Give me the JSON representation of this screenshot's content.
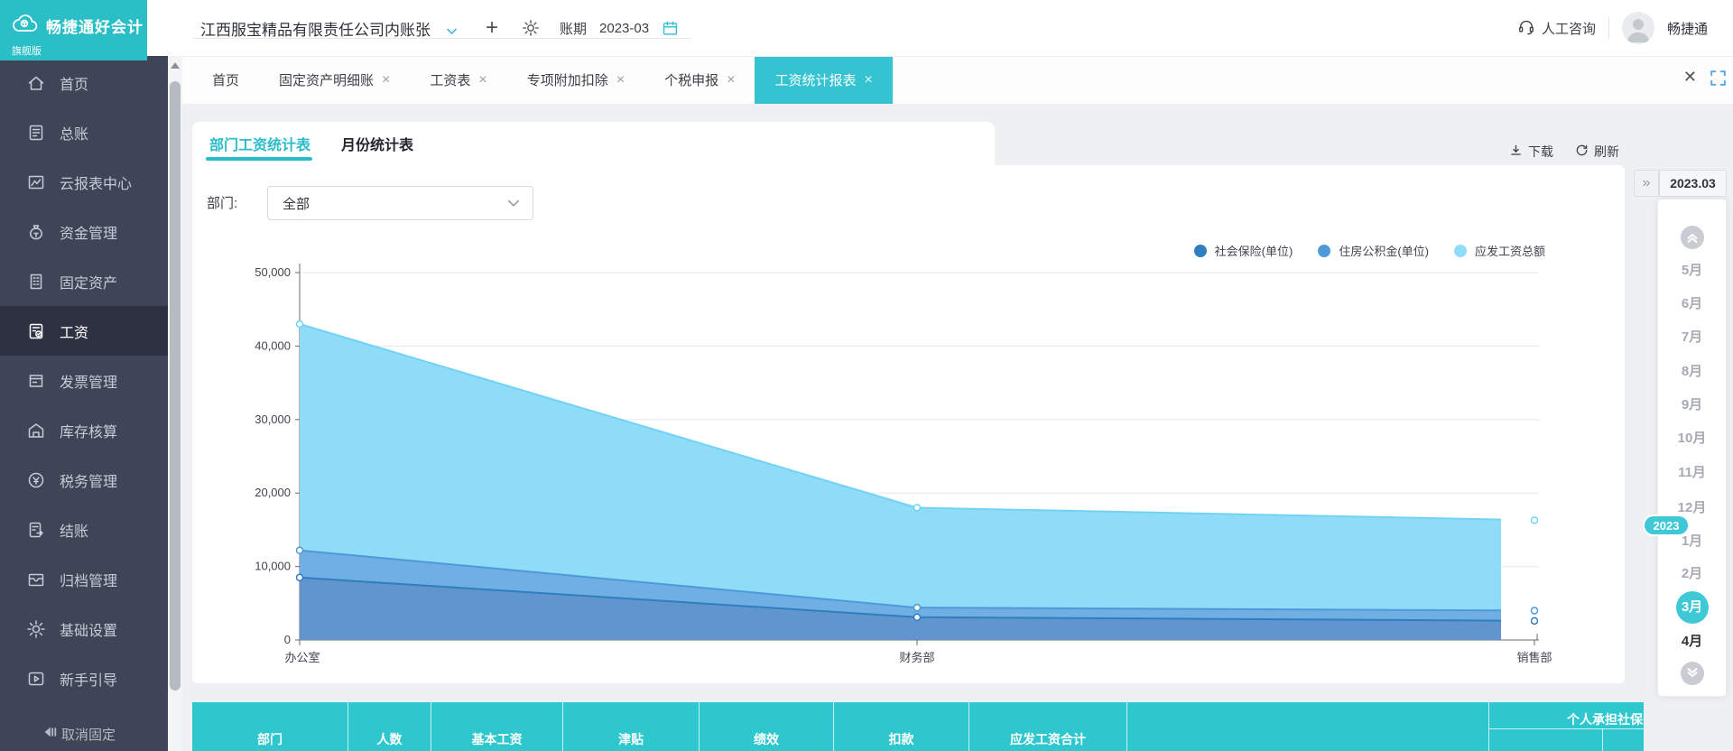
{
  "brand": {
    "name": "畅捷通好会计",
    "edition": "旗舰版"
  },
  "topbar": {
    "company": "江西服宝精品有限责任公司内账张",
    "period_label": "账期",
    "period_value": "2023-03",
    "help_label": "人工咨询",
    "user_name": "畅捷通"
  },
  "sidebar": {
    "items": [
      {
        "label": "首页",
        "icon": "home",
        "active": false
      },
      {
        "label": "总账",
        "icon": "ledger",
        "active": false
      },
      {
        "label": "云报表中心",
        "icon": "report",
        "active": false
      },
      {
        "label": "资金管理",
        "icon": "fund",
        "active": false
      },
      {
        "label": "固定资产",
        "icon": "asset",
        "active": false
      },
      {
        "label": "工资",
        "icon": "payroll",
        "active": true
      },
      {
        "label": "发票管理",
        "icon": "invoice",
        "active": false
      },
      {
        "label": "库存核算",
        "icon": "inventory",
        "active": false
      },
      {
        "label": "税务管理",
        "icon": "tax",
        "active": false
      },
      {
        "label": "结账",
        "icon": "closing",
        "active": false
      },
      {
        "label": "归档管理",
        "icon": "archive",
        "active": false
      },
      {
        "label": "基础设置",
        "icon": "settings",
        "active": false
      },
      {
        "label": "新手引导",
        "icon": "guide",
        "active": false
      }
    ],
    "unpin_label": "取消固定"
  },
  "tabs": [
    {
      "label": "首页",
      "closable": false,
      "active": false
    },
    {
      "label": "固定资产明细账",
      "closable": true,
      "active": false
    },
    {
      "label": "工资表",
      "closable": true,
      "active": false
    },
    {
      "label": "专项附加扣除",
      "closable": true,
      "active": false
    },
    {
      "label": "个税申报",
      "closable": true,
      "active": false
    },
    {
      "label": "工资统计报表",
      "closable": true,
      "active": true
    }
  ],
  "report": {
    "subtabs": [
      {
        "label": "部门工资统计表",
        "active": true
      },
      {
        "label": "月份统计表",
        "active": false
      }
    ],
    "filter_label": "部门:",
    "filter_value": "全部",
    "download_label": "下载",
    "refresh_label": "刷新"
  },
  "chart_data": {
    "type": "area",
    "categories": [
      "办公室",
      "财务部",
      "销售部"
    ],
    "series": [
      {
        "name": "社会保险(单位)",
        "color": "#2E7EC1",
        "fill": "#6095CE",
        "values": [
          8500,
          3100,
          2600
        ]
      },
      {
        "name": "住房公积金(单位)",
        "color": "#4E99D8",
        "fill": "#6FAFE3",
        "values": [
          12200,
          4400,
          4000
        ]
      },
      {
        "name": "应发工资总额",
        "color": "#72D2F4",
        "fill": "#8EDCF8",
        "values": [
          43000,
          18000,
          16300
        ]
      }
    ],
    "ylim": [
      0,
      50000
    ],
    "ytick_step": 10000,
    "ytick_labels": [
      "0",
      "10,000",
      "20,000",
      "30,000",
      "40,000",
      "50,000"
    ],
    "legend_position": "top-right",
    "grid": true
  },
  "month_panel": {
    "date_label": "2023.03",
    "year_badge": "2023",
    "months": [
      {
        "label": "5月",
        "state": "past"
      },
      {
        "label": "6月",
        "state": "past"
      },
      {
        "label": "7月",
        "state": "past"
      },
      {
        "label": "8月",
        "state": "past"
      },
      {
        "label": "9月",
        "state": "past"
      },
      {
        "label": "10月",
        "state": "past"
      },
      {
        "label": "11月",
        "state": "past"
      },
      {
        "label": "12月",
        "state": "past"
      },
      {
        "label": "1月",
        "state": "past"
      },
      {
        "label": "2月",
        "state": "past"
      },
      {
        "label": "3月",
        "state": "selected"
      },
      {
        "label": "4月",
        "state": "future"
      }
    ]
  },
  "table": {
    "columns": [
      "部门",
      "人数",
      "基本工资",
      "津贴",
      "绩效",
      "扣款",
      "应发工资合计"
    ],
    "group_header": "个人承担社保险"
  },
  "colors": {
    "brand_teal": "#2abfc7",
    "active_tab_teal": "#35c3d1",
    "table_teal": "#2ec7ce",
    "sidebar_navy": "#3f4456"
  }
}
